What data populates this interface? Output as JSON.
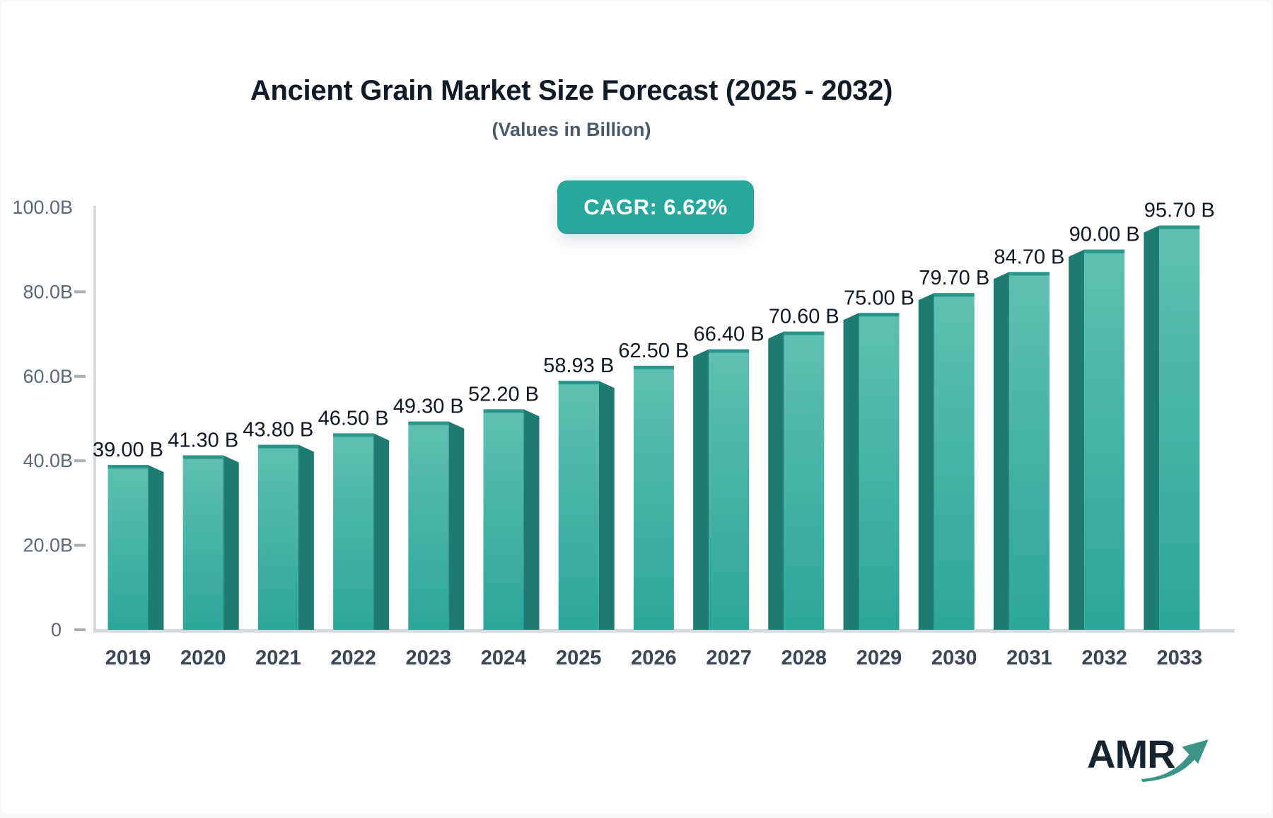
{
  "page": {
    "background": "#f6f8fa",
    "card_background": "#ffffff"
  },
  "header": {
    "title": "Ancient Grain Market Size Forecast (2025 - 2032)",
    "subtitle": "(Values in Billion)"
  },
  "cagr_badge": {
    "label": "CAGR: 6.62%",
    "background": "#2aa79c",
    "text_color": "#ffffff"
  },
  "chart_data": {
    "type": "bar",
    "title": "Ancient Grain Market Size Forecast (2025 - 2032)",
    "subtitle": "(Values in Billion)",
    "xlabel": "",
    "ylabel": "",
    "categories": [
      "2019",
      "2020",
      "2021",
      "2022",
      "2023",
      "2024",
      "2025",
      "2026",
      "2027",
      "2028",
      "2029",
      "2030",
      "2031",
      "2032",
      "2033"
    ],
    "values": [
      39.0,
      41.3,
      43.8,
      46.5,
      49.3,
      52.2,
      58.93,
      62.5,
      66.4,
      70.6,
      75.0,
      79.7,
      84.7,
      90.0,
      95.7
    ],
    "value_labels": [
      "39.00 B",
      "41.30 B",
      "43.80 B",
      "46.50 B",
      "49.30 B",
      "52.20 B",
      "58.93 B",
      "62.50 B",
      "66.40 B",
      "70.60 B",
      "75.00 B",
      "79.70 B",
      "84.70 B",
      "90.00 B",
      "95.70 B"
    ],
    "y_ticks": [
      {
        "label": "100.0B",
        "value": 100
      },
      {
        "label": "80.0B",
        "value": 80
      },
      {
        "label": "60.0B",
        "value": 60
      },
      {
        "label": "40.0B",
        "value": 40
      },
      {
        "label": "20.0B",
        "value": 20
      },
      {
        "label": "0",
        "value": 0
      }
    ],
    "ylim": [
      0,
      100
    ],
    "grid": false,
    "legend": "none",
    "cagr": "6.62%",
    "colors": {
      "bar_face_top": "#5fc0b2",
      "bar_face_bottom": "#2ca69a",
      "bar_side": "#1e7b71",
      "bar_top_edge": "#2d968b",
      "axis_line": "#d6d9dd",
      "tick_dash": "#a9b0b8"
    }
  },
  "logo": {
    "text": "AMR",
    "arrow_icon": "trend-up-arrow",
    "text_color": "#16242f",
    "arrow_color": "#3b9389"
  }
}
